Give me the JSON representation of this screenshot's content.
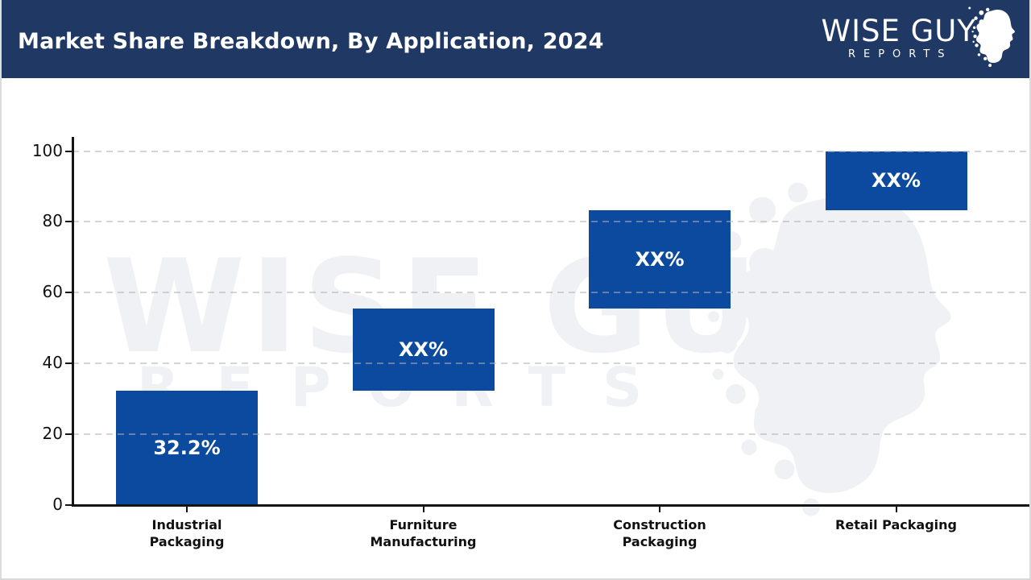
{
  "header": {
    "title": "Market Share Breakdown, By Application, 2024",
    "logo": {
      "name": "WISE GUY",
      "tagline": "REPORTS"
    }
  },
  "watermark": {
    "line1": "WISE GUY",
    "line2": "REPORTS"
  },
  "chart_data": {
    "type": "bar",
    "subtype": "waterfall-breakdown",
    "title": "Market Share Breakdown, By Application, 2024",
    "categories": [
      "Industrial Packaging",
      "Furniture Manufacturing",
      "Construction Packaging",
      "Retail Packaging"
    ],
    "bars": [
      {
        "category": "Industrial Packaging",
        "start": 0,
        "end": 32.2,
        "label": "32.2%"
      },
      {
        "category": "Furniture Manufacturing",
        "start": 32.2,
        "end": 55.5,
        "label": "XX%"
      },
      {
        "category": "Construction Packaging",
        "start": 55.5,
        "end": 83.2,
        "label": "XX%"
      },
      {
        "category": "Retail Packaging",
        "start": 83.2,
        "end": 100,
        "label": "XX%"
      }
    ],
    "ylim": [
      0,
      100
    ],
    "yticks": [
      0,
      20,
      40,
      60,
      80,
      100
    ],
    "grid": {
      "horizontal": true,
      "style": "dashed"
    },
    "legend": "none",
    "bar_color": "#0b4a9e",
    "bar_label_color": "#ffffff"
  },
  "colors": {
    "header_bg": "#1f3864",
    "accent_blue": "#0b4a9e",
    "watermark_gray": "#f0f1f4",
    "axis_color": "#151515",
    "gridline_gray": "#d9d9d9",
    "border_gray": "#dcdcdc"
  }
}
